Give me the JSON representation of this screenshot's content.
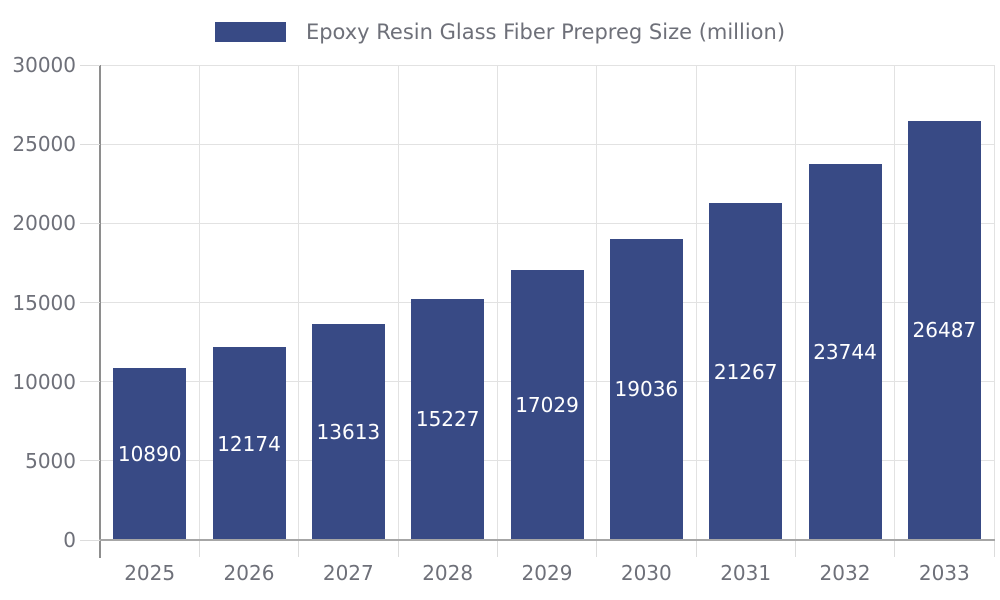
{
  "legend": {
    "label": "Epoxy Resin Glass Fiber Prepreg Size (million)"
  },
  "chart_data": {
    "type": "bar",
    "title": "Epoxy Resin Glass Fiber Prepreg Size (million)",
    "series_name": "Epoxy Resin Glass Fiber Prepreg Size (million)",
    "categories": [
      "2025",
      "2026",
      "2027",
      "2028",
      "2029",
      "2030",
      "2031",
      "2032",
      "2033"
    ],
    "values": [
      10890,
      12174,
      13613,
      15227,
      17029,
      19036,
      21267,
      23744,
      26487
    ],
    "xlabel": "",
    "ylabel": "",
    "ylim": [
      0,
      30000
    ],
    "y_ticks": [
      0,
      5000,
      10000,
      15000,
      20000,
      25000,
      30000
    ],
    "grid": true,
    "legend_position": "top",
    "value_labels": "inside-center"
  },
  "colors": {
    "bar": "#384A85",
    "value_label": "#ffffff",
    "h_grid_line": "#e2e2e2",
    "v_grid_line": "#e2e2e2",
    "y_axis_line": "#8e8e8e",
    "x_axis_line": "#a6a6a6",
    "tick": "#dcdcdc",
    "axis_text": "#6e7079",
    "legend_text": "#6e7079",
    "background": "#ffffff"
  }
}
